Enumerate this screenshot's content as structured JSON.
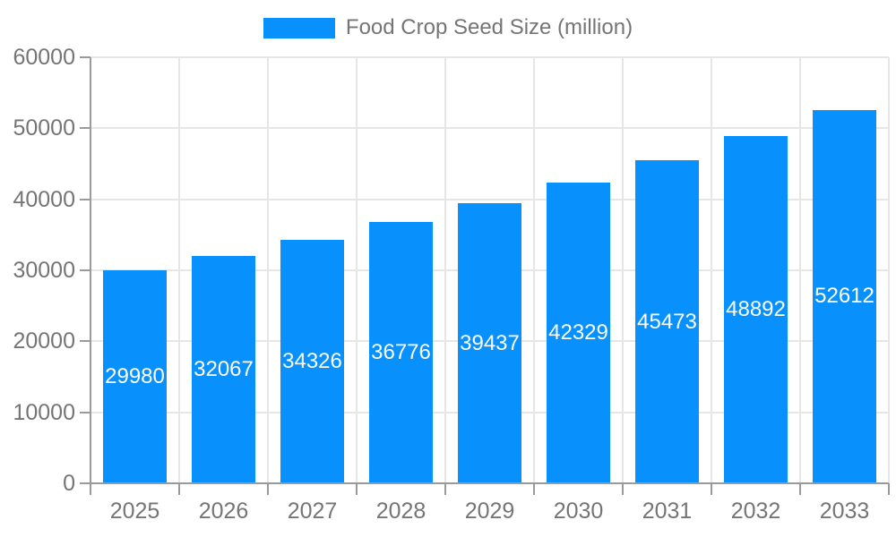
{
  "chart_data": {
    "type": "bar",
    "title": "Food Crop Seed Size (million)",
    "categories": [
      "2025",
      "2026",
      "2027",
      "2028",
      "2029",
      "2030",
      "2031",
      "2032",
      "2033"
    ],
    "series": [
      {
        "name": "Food Crop Seed Size (million)",
        "values": [
          29980,
          32067,
          34326,
          36776,
          39437,
          42329,
          45473,
          48892,
          52612
        ]
      }
    ],
    "xlabel": "",
    "ylabel": "",
    "ylim": [
      0,
      60000
    ],
    "yticks": [
      0,
      10000,
      20000,
      30000,
      40000,
      50000,
      60000
    ],
    "grid": true,
    "legend_position": "top",
    "value_labels": "inside-center",
    "colors": {
      "bar": "#0890fc",
      "bar_value_text": "#ffffff",
      "axis_text": "#757575",
      "axis_line": "#9a9a9a",
      "gridline": "#e6e6e6",
      "background": "#ffffff"
    }
  },
  "legend": {
    "label": "Food Crop Seed Size (million)"
  }
}
